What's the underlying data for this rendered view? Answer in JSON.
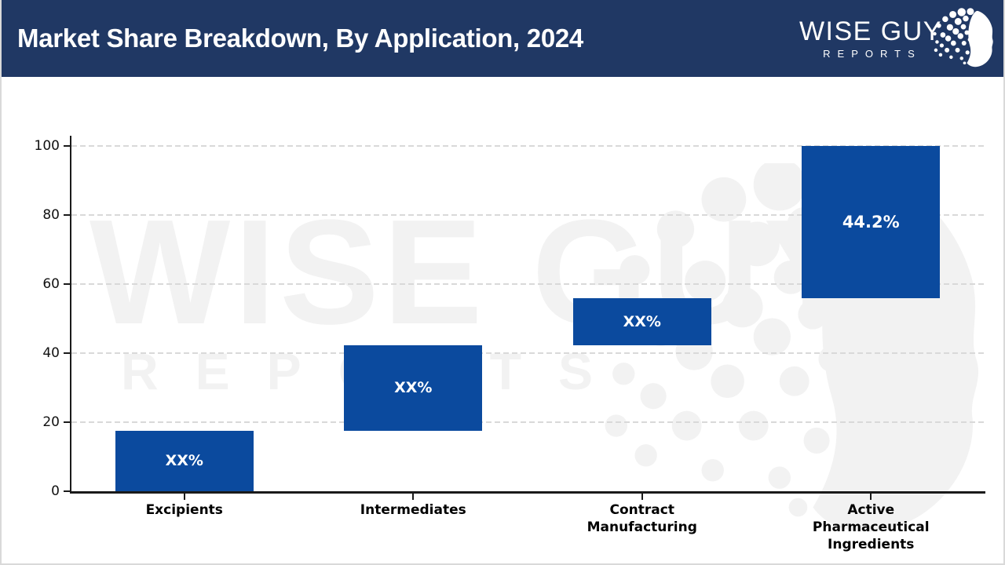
{
  "header": {
    "title": "Market Share Breakdown, By Application, 2024",
    "bg_color": "#203864",
    "logo": {
      "line1": "WISE GUY",
      "line2": "REPORTS"
    }
  },
  "watermark": {
    "line1": "WISE GUY",
    "line2": "REPORTS"
  },
  "chart_data": {
    "type": "bar",
    "subtype": "waterfall",
    "title": "Market Share Breakdown, By Application, 2024",
    "xlabel": "",
    "ylabel": "",
    "categories": [
      "Excipients",
      "Intermediates",
      "Contract Manufacturing",
      "Active Pharmaceutical Ingredients"
    ],
    "segments": [
      {
        "category": "Excipients",
        "start": 0,
        "end": 17.6,
        "value_label": "XX%"
      },
      {
        "category": "Intermediates",
        "start": 17.6,
        "end": 42.3,
        "value_label": "XX%"
      },
      {
        "category": "Contract Manufacturing",
        "start": 42.3,
        "end": 55.8,
        "value_label": "XX%"
      },
      {
        "category": "Active Pharmaceutical Ingredients",
        "start": 55.8,
        "end": 100,
        "value_label": "44.2%"
      }
    ],
    "yticks": [
      0,
      20,
      40,
      60,
      80,
      100
    ],
    "ylim": [
      0,
      105
    ],
    "bar_color": "#0b4a9e",
    "grid": "horizontal-dashed",
    "legend": null
  }
}
